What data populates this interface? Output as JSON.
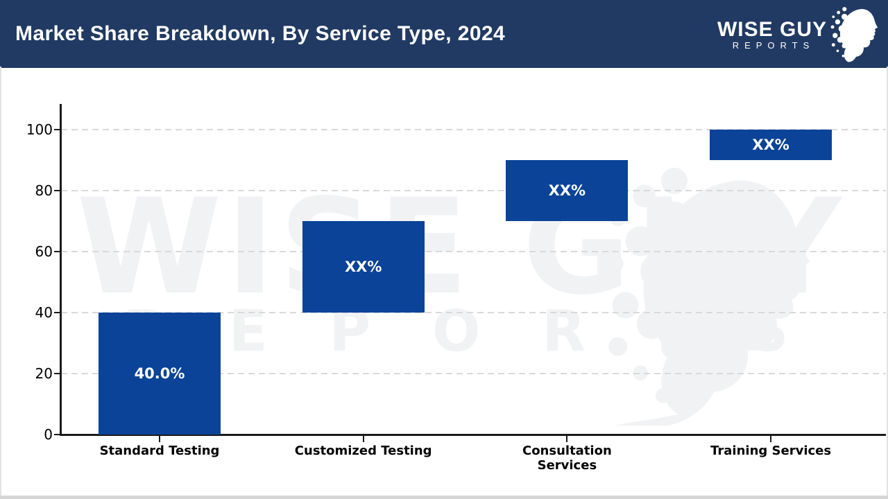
{
  "header": {
    "title": "Market Share Breakdown, By Service Type, 2024",
    "logo": {
      "line1": "WISE GUY",
      "line2": "REPORTS"
    }
  },
  "watermark": {
    "line1": "WISE GUY",
    "line2": "R E P O R T S"
  },
  "colors": {
    "header_bg": "#213a63",
    "bar_blue": "#0a4398",
    "watermark_gray": "#f1f2f4",
    "grid_gray": "#d9d9d9"
  },
  "chart_data": {
    "type": "bar",
    "subtype": "waterfall",
    "title": "Market Share Breakdown, By Service Type, 2024",
    "categories": [
      "Standard Testing",
      "Customized Testing",
      "Consultation\nServices",
      "Training Services"
    ],
    "segments": [
      {
        "category": "Standard Testing",
        "start": 0,
        "end": 40,
        "label": "40.0%"
      },
      {
        "category": "Customized Testing",
        "start": 40,
        "end": 70,
        "label": "XX%"
      },
      {
        "category": "Consultation\nServices",
        "start": 70,
        "end": 90,
        "label": "XX%"
      },
      {
        "category": "Training Services",
        "start": 90,
        "end": 100,
        "label": "XX%"
      }
    ],
    "y_ticks": [
      0,
      20,
      40,
      60,
      80,
      100
    ],
    "ylim": [
      0,
      100
    ],
    "xlabel": "",
    "ylabel": "",
    "grid": "horizontal-dashed",
    "legend": "none"
  }
}
